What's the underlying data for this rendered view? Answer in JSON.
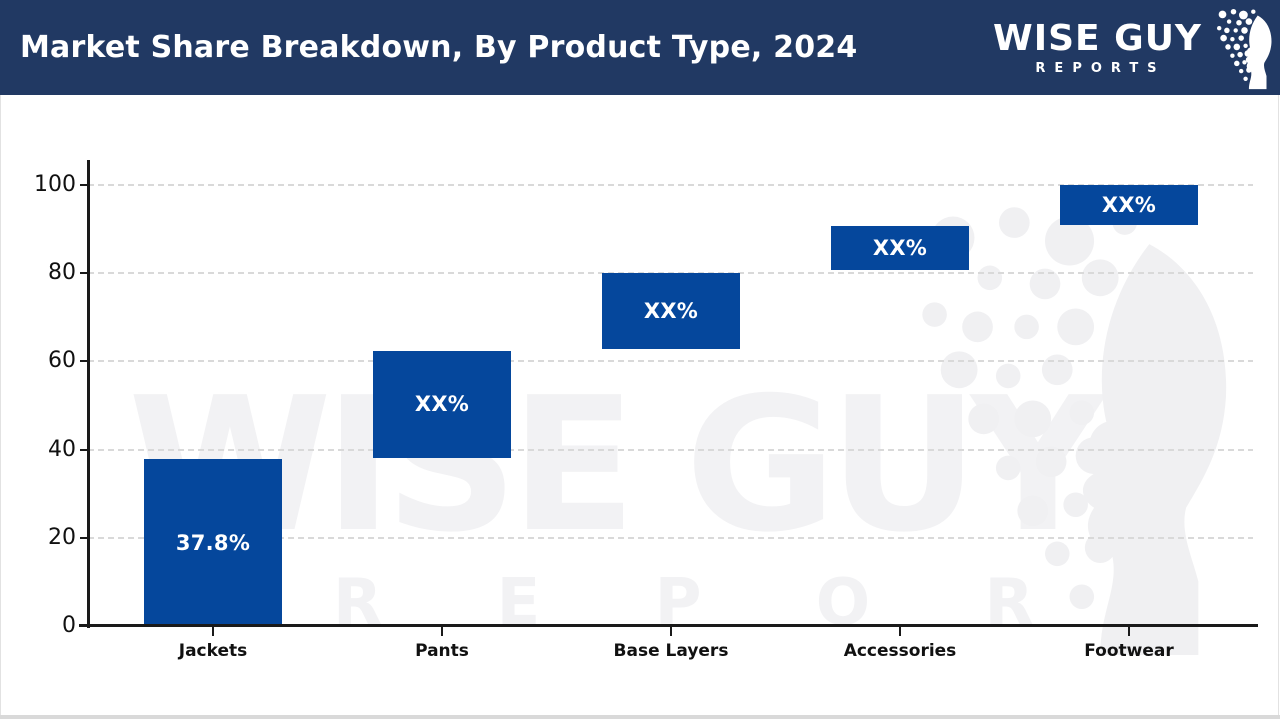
{
  "header": {
    "title": "Market Share Breakdown, By Product Type, 2024",
    "background_color": "#213963",
    "logo": {
      "line1": "WISE GUY",
      "line2": "REPORTS"
    }
  },
  "watermark": {
    "line1": "WISE GUY",
    "line2": "R E P O R T S"
  },
  "chart_data": {
    "type": "bar",
    "subtype": "waterfall",
    "title": "Market Share Breakdown, By Product Type, 2024",
    "categories": [
      "Jackets",
      "Pants",
      "Base Layers",
      "Accessories",
      "Footwear"
    ],
    "segments": [
      {
        "category": "Jackets",
        "start": 0,
        "end": 37.8,
        "label": "37.8%"
      },
      {
        "category": "Pants",
        "start": 38.1,
        "end": 62.4,
        "label": "XX%"
      },
      {
        "category": "Base Layers",
        "start": 62.7,
        "end": 80.1,
        "label": "XX%"
      },
      {
        "category": "Accessories",
        "start": 80.7,
        "end": 90.8,
        "label": "XX%"
      },
      {
        "category": "Footwear",
        "start": 91.0,
        "end": 100.0,
        "label": "XX%"
      }
    ],
    "y_ticks": [
      0,
      20,
      40,
      60,
      80,
      100
    ],
    "ylim": [
      0,
      105
    ],
    "xlabel": "",
    "ylabel": "",
    "grid": "horizontal-dashed",
    "legend": "none",
    "bar_color": "#05479C",
    "bar_label_color": "#ffffff",
    "axis_color": "#1a1a1a",
    "gridline_color": "#d9d9d9"
  }
}
